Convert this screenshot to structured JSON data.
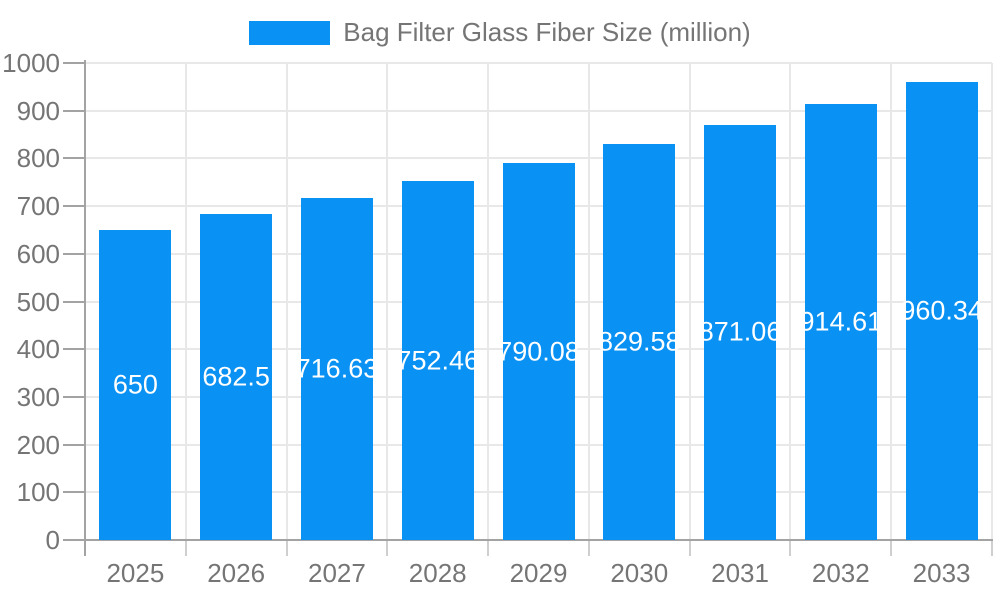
{
  "chart_data": {
    "type": "bar",
    "title": "Bag Filter Glass Fiber Size (million)",
    "categories": [
      "2025",
      "2026",
      "2027",
      "2028",
      "2029",
      "2030",
      "2031",
      "2032",
      "2033"
    ],
    "values": [
      650,
      682.5,
      716.63,
      752.46,
      790.08,
      829.58,
      871.06,
      914.61,
      960.34
    ],
    "value_labels": [
      "650",
      "682.5",
      "716.63",
      "752.46",
      "790.08",
      "829.58",
      "871.06",
      "914.61",
      "960.34"
    ],
    "xlabel": "",
    "ylabel": "",
    "ylim": [
      0,
      1000
    ],
    "ytick_step": 100,
    "ytick_labels": [
      "0",
      "100",
      "200",
      "300",
      "400",
      "500",
      "600",
      "700",
      "800",
      "900",
      "1000"
    ],
    "grid": true,
    "legend_position": "top-center",
    "colors": {
      "bar": "#0991f3",
      "bar_label_text": "#ffffff",
      "axis_text": "#757575",
      "axis_line": "#a3a3a3",
      "gridline": "#e8e8e8",
      "x_tick": "#cfcfcf",
      "background": "#ffffff"
    }
  }
}
